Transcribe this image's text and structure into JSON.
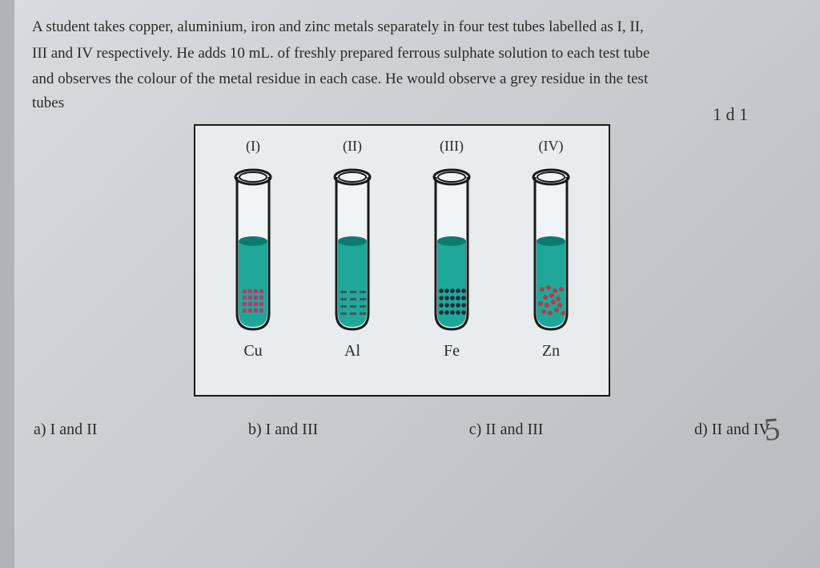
{
  "question": {
    "line1": "A student takes copper, aluminium, iron and zinc metals separately in four test tubes labelled as I, II,",
    "line2": "III and IV respectively. He adds 10 mL. of freshly prepared ferrous sulphate solution to each test tube",
    "line3": "and observes the colour of the metal residue in each case. He would observe a grey residue in the test",
    "line4": "tubes"
  },
  "mark_hint": "1 d 1",
  "diagram": {
    "border_color": "#1a1a1a",
    "background": "#e8ecee",
    "tube_outline": "#1a1a1a",
    "tube_glass": "#f0f4f6",
    "liquid_color": "#1fa89a",
    "liquid_top_shade": "#0d7a6f",
    "tubes": [
      {
        "top": "(I)",
        "bottom": "Cu",
        "residue_color": "#b83a6a",
        "residue_pattern": "grid"
      },
      {
        "top": "(II)",
        "bottom": "Al",
        "residue_color": "#3a5a5a",
        "residue_pattern": "dash"
      },
      {
        "top": "(III)",
        "bottom": "Fe",
        "residue_color": "#1a2a3a",
        "residue_pattern": "dots"
      },
      {
        "top": "(IV)",
        "bottom": "Zn",
        "residue_color": "#b83a4a",
        "residue_pattern": "scatter"
      }
    ]
  },
  "options": {
    "a": "a) I and II",
    "b": "b) I and III",
    "c": "c) II and III",
    "d": "d) II and IV"
  },
  "handwritten": "5"
}
